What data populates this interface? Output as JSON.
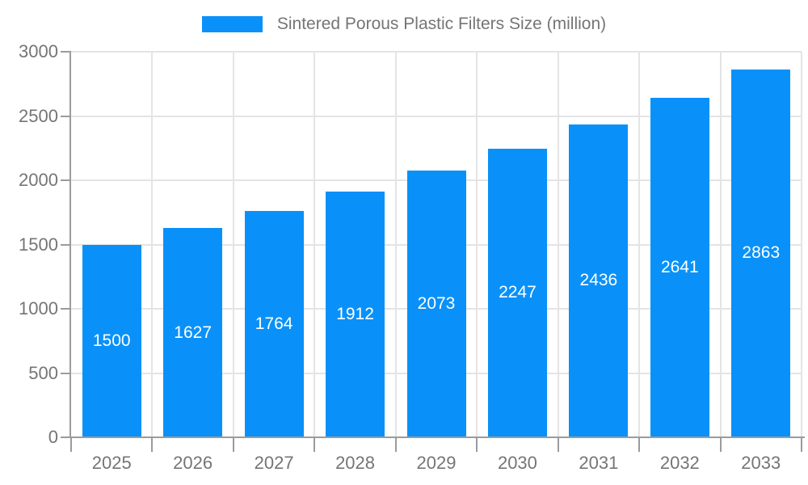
{
  "chart_data": {
    "type": "bar",
    "title": "Sintered Porous Plastic Filters Size (million)",
    "categories": [
      "2025",
      "2026",
      "2027",
      "2028",
      "2029",
      "2030",
      "2031",
      "2032",
      "2033"
    ],
    "values": [
      1500,
      1627,
      1764,
      1912,
      2073,
      2247,
      2436,
      2641,
      2863
    ],
    "xlabel": "",
    "ylabel": "",
    "ylim": [
      0,
      3000
    ],
    "yticks": [
      0,
      500,
      1000,
      1500,
      2000,
      2500,
      3000
    ],
    "grid": true,
    "legend_position": "top",
    "bar_labels_inside": true,
    "colors": {
      "bar": "#0991F9",
      "bar_label": "#ffffff",
      "axis_text": "#757575",
      "axis_line": "#9B9B9B",
      "grid_line": "#E4E4E4",
      "background": "#ffffff"
    }
  }
}
